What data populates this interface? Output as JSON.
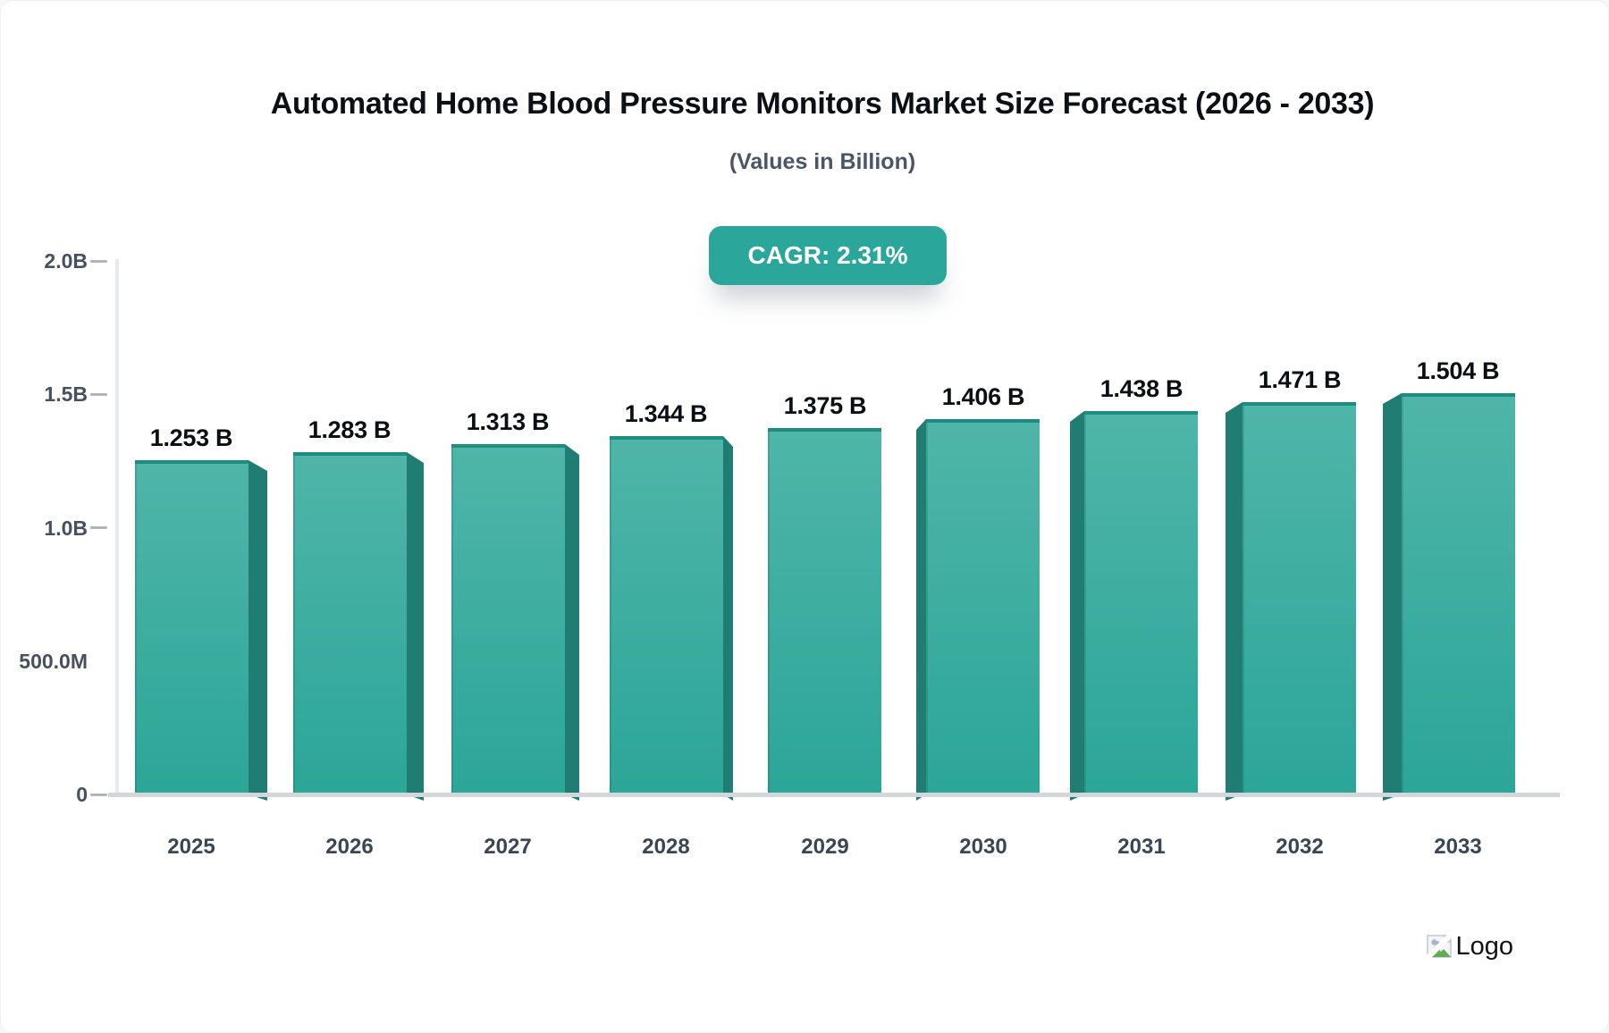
{
  "header": {
    "title": "Automated Home Blood Pressure Monitors Market Size Forecast (2026 - 2033)",
    "subtitle": "(Values in Billion)"
  },
  "badge": {
    "label": "CAGR: 2.31%",
    "bg_color": "#2AA79A",
    "text_color": "#FFFFFF"
  },
  "chart_data": {
    "type": "bar",
    "title": "Automated Home Blood Pressure Monitors Market Size Forecast (2026 - 2033)",
    "subtitle": "(Values in Billion)",
    "unit": "B",
    "cagr_percent": 2.31,
    "categories": [
      "2025",
      "2026",
      "2027",
      "2028",
      "2029",
      "2030",
      "2031",
      "2032",
      "2033"
    ],
    "values": [
      1.253,
      1.283,
      1.313,
      1.344,
      1.375,
      1.406,
      1.438,
      1.471,
      1.504
    ],
    "bar_labels": [
      "1.253 B",
      "1.283 B",
      "1.313 B",
      "1.344 B",
      "1.375 B",
      "1.406 B",
      "1.438 B",
      "1.471 B",
      "1.504 B"
    ],
    "ylim": [
      0,
      2.0
    ],
    "yticks": [
      {
        "label": "2.0B",
        "value": 2.0
      },
      {
        "label": "1.5B",
        "value": 1.5
      },
      {
        "label": "1.0B",
        "value": 1.0
      },
      {
        "label": "500.0M",
        "value": 0.5
      },
      {
        "label": "0",
        "value": 0
      }
    ],
    "grid": false,
    "legend": false,
    "colors": {
      "bar_face_top": "#4FB5A9",
      "bar_face_bottom": "#2BA697",
      "bar_side": "#1F7D74",
      "bar_cap": "#1E8C81",
      "axis_line": "#E7E9EC",
      "baseline": "#D3D6DB",
      "tick_dash": "#AEB4BC",
      "axis_label": "#465060",
      "value_label": "#0B0F14",
      "category_label": "#3A4556"
    }
  },
  "footer": {
    "logo_text": "Logo"
  }
}
